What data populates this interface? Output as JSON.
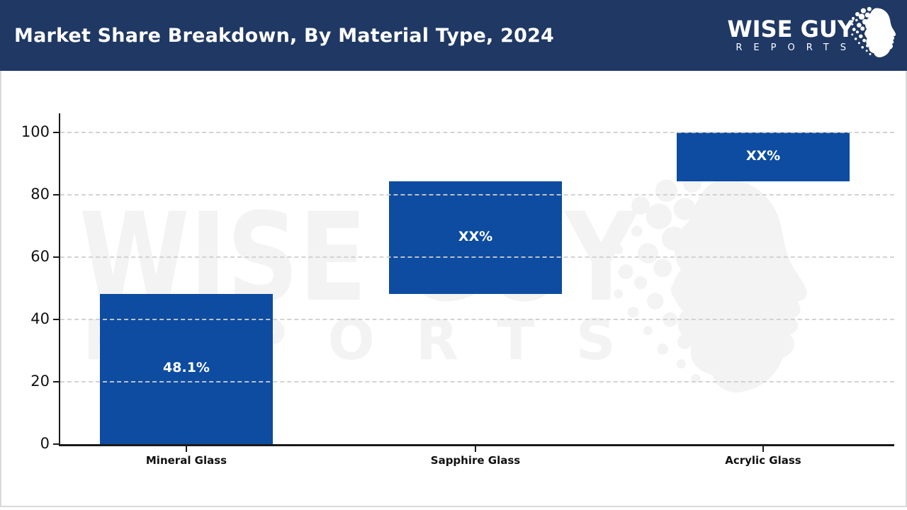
{
  "header": {
    "title": "Market Share Breakdown, By Material Type, 2024",
    "bg_color": "#1F3864",
    "logo": {
      "line1": "WISE GUY",
      "line2": "REPORTS"
    }
  },
  "watermark": {
    "line1": "WISE GUY",
    "line2": "REPORTS"
  },
  "chart_data": {
    "type": "bar",
    "subtype": "waterfall",
    "title": "Market Share Breakdown, By Material Type, 2024",
    "categories": [
      "Mineral Glass",
      "Sapphire Glass",
      "Acrylic Glass"
    ],
    "segments": [
      {
        "category": "Mineral Glass",
        "start": 0,
        "end": 48.1,
        "label": "48.1%"
      },
      {
        "category": "Sapphire Glass",
        "start": 48.1,
        "end": 84.3,
        "label": "XX%"
      },
      {
        "category": "Acrylic Glass",
        "start": 84.3,
        "end": 100,
        "label": "XX%"
      }
    ],
    "y_ticks": [
      0,
      20,
      40,
      60,
      80,
      100
    ],
    "ylim": [
      0,
      105
    ],
    "xlabel": "",
    "ylabel": "",
    "legend": "none",
    "grid": "dashed-horizontal",
    "colors": {
      "bar": "#0D4CA0",
      "header_bg": "#1F3864",
      "grid": "#D9D9D9",
      "axis": "#1A1A1A",
      "bar_label": "#FFFFFF",
      "watermark": "#F3F3F3"
    }
  }
}
